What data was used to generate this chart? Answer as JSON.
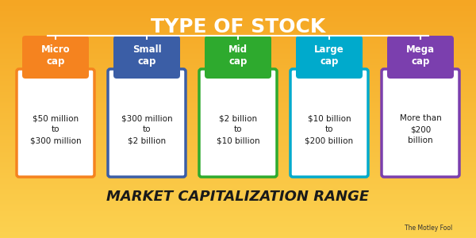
{
  "title": "TYPE OF STOCK",
  "subtitle": "MARKET CAPITALIZATION RANGE",
  "background_color_top": "#F5A623",
  "background_color_bottom": "#F5C842",
  "cards": [
    {
      "label": "Micro\ncap",
      "color": "#F5831F",
      "border_color": "#F5831F",
      "text": "$50 million\nto\n$300 million"
    },
    {
      "label": "Small\ncap",
      "color": "#3B5EA6",
      "border_color": "#3B5EA6",
      "text": "$300 million\nto\n$2 billion"
    },
    {
      "label": "Mid\ncap",
      "color": "#2EAA2E",
      "border_color": "#2EAA2E",
      "text": "$2 billion\nto\n$10 billion"
    },
    {
      "label": "Large\ncap",
      "color": "#00AACC",
      "border_color": "#00AACC",
      "text": "$10 billion\nto\n$200 billion"
    },
    {
      "label": "Mega\ncap",
      "color": "#7B3FAE",
      "border_color": "#7B3FAE",
      "text": "More than\n$200\nbillion"
    }
  ],
  "title_color": "#FFFFFF",
  "subtitle_color": "#1A1A1A",
  "card_text_color": "#1A1A1A",
  "label_text_color": "#FFFFFF",
  "watermark": "The Motley Fool"
}
